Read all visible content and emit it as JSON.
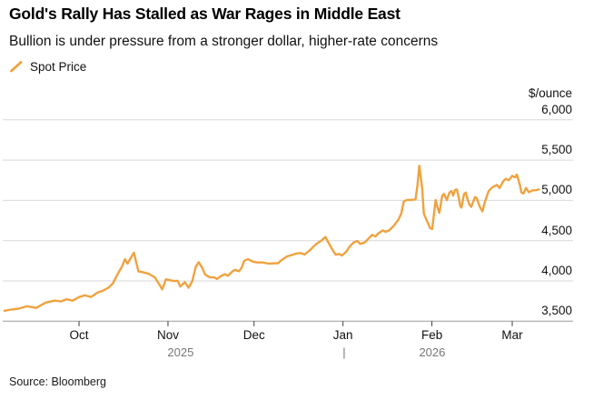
{
  "header": {
    "title": "Gold's Rally Has Stalled as War Rages in Middle East",
    "subtitle": "Bullion is under pressure from a stronger dollar, higher-rate concerns"
  },
  "legend": {
    "label": "Spot Price",
    "marker": "orange-slash"
  },
  "footer": {
    "source": "Source: Bloomberg"
  },
  "colors": {
    "line": "#F0A23F",
    "grid": "#D9D9D9",
    "axis": "#A6A6A6",
    "tick": "#3C3C3C",
    "year": "#767676",
    "text": "#000000",
    "background": "#FFFFFF"
  },
  "chart_data": {
    "type": "line",
    "title": "Gold's Rally Has Stalled as War Rages in Middle East",
    "subtitle": "Bullion is under pressure from a stronger dollar, higher-rate concerns",
    "y_unit": "$/ounce",
    "ylim": [
      3500,
      6000
    ],
    "y_ticks": [
      3500,
      4000,
      4500,
      5000,
      5500,
      6000
    ],
    "grid": true,
    "legend_position": "top-left",
    "x_epoch": "2025-09-05",
    "x_unit": "days since 2025-09-05",
    "x_ticks": [
      {
        "day": 26,
        "label": "Oct"
      },
      {
        "day": 57,
        "label": "Nov"
      },
      {
        "day": 87,
        "label": "Dec"
      },
      {
        "day": 118,
        "label": "Jan"
      },
      {
        "day": 149,
        "label": "Feb"
      },
      {
        "day": 177,
        "label": "Mar"
      }
    ],
    "year_labels": [
      {
        "day": 61.4,
        "label": "2025"
      },
      {
        "day": 118.4,
        "label": "|",
        "divider": true
      },
      {
        "day": 149.1,
        "label": "2026"
      }
    ],
    "series": [
      {
        "name": "Spot Price",
        "points": [
          [
            0,
            3630
          ],
          [
            2.5,
            3645
          ],
          [
            4.8,
            3655
          ],
          [
            7.9,
            3685
          ],
          [
            11.1,
            3665
          ],
          [
            14.3,
            3730
          ],
          [
            17.5,
            3755
          ],
          [
            19.7,
            3745
          ],
          [
            21.6,
            3772
          ],
          [
            23.8,
            3755
          ],
          [
            26.1,
            3800
          ],
          [
            28,
            3820
          ],
          [
            30.2,
            3800
          ],
          [
            32.4,
            3855
          ],
          [
            34.3,
            3878
          ],
          [
            36.2,
            3915
          ],
          [
            37.8,
            3970
          ],
          [
            39.7,
            4100
          ],
          [
            41,
            4180
          ],
          [
            42,
            4270
          ],
          [
            42.9,
            4215
          ],
          [
            44.2,
            4295
          ],
          [
            45.1,
            4350
          ],
          [
            46.7,
            4120
          ],
          [
            48.6,
            4105
          ],
          [
            50.5,
            4085
          ],
          [
            52.4,
            4045
          ],
          [
            54,
            3955
          ],
          [
            55,
            3895
          ],
          [
            56.3,
            4020
          ],
          [
            58.8,
            4000
          ],
          [
            60.4,
            4000
          ],
          [
            61.3,
            3930
          ],
          [
            62.9,
            3985
          ],
          [
            64.2,
            3915
          ],
          [
            65.5,
            4000
          ],
          [
            66.7,
            4176
          ],
          [
            67.7,
            4233
          ],
          [
            69,
            4157
          ],
          [
            69.9,
            4082
          ],
          [
            71.5,
            4044
          ],
          [
            73.1,
            4044
          ],
          [
            74.1,
            4025
          ],
          [
            75.6,
            4063
          ],
          [
            76.9,
            4082
          ],
          [
            77.9,
            4063
          ],
          [
            79.5,
            4120
          ],
          [
            80.4,
            4138
          ],
          [
            81.7,
            4120
          ],
          [
            82.6,
            4157
          ],
          [
            83.6,
            4251
          ],
          [
            84.9,
            4270
          ],
          [
            86.5,
            4240
          ],
          [
            88,
            4229
          ],
          [
            90,
            4229
          ],
          [
            92.2,
            4215
          ],
          [
            93.8,
            4218
          ],
          [
            95.4,
            4220
          ],
          [
            96.3,
            4251
          ],
          [
            98.5,
            4305
          ],
          [
            100.1,
            4320
          ],
          [
            101.7,
            4340
          ],
          [
            103.3,
            4346
          ],
          [
            104.6,
            4327
          ],
          [
            106.5,
            4383
          ],
          [
            108.7,
            4459
          ],
          [
            110.3,
            4496
          ],
          [
            111.9,
            4545
          ],
          [
            113.5,
            4440
          ],
          [
            114.4,
            4383
          ],
          [
            115.4,
            4327
          ],
          [
            116.7,
            4334
          ],
          [
            117.6,
            4315
          ],
          [
            119.2,
            4365
          ],
          [
            120.2,
            4421
          ],
          [
            121.7,
            4477
          ],
          [
            123,
            4496
          ],
          [
            124,
            4459
          ],
          [
            125.6,
            4477
          ],
          [
            127.1,
            4533
          ],
          [
            128.1,
            4571
          ],
          [
            129.4,
            4552
          ],
          [
            130.3,
            4590
          ],
          [
            131.9,
            4628
          ],
          [
            132.9,
            4609
          ],
          [
            134.1,
            4628
          ],
          [
            135.7,
            4684
          ],
          [
            137.3,
            4760
          ],
          [
            138.3,
            4834
          ],
          [
            139.2,
            4985
          ],
          [
            140.2,
            5005
          ],
          [
            141.4,
            5005
          ],
          [
            142.4,
            5008
          ],
          [
            143.3,
            5015
          ],
          [
            144,
            5200
          ],
          [
            144.6,
            5430
          ],
          [
            145.6,
            5150
          ],
          [
            146.2,
            4835
          ],
          [
            147.2,
            4750
          ],
          [
            148.4,
            4655
          ],
          [
            149.1,
            4645
          ],
          [
            150.3,
            5003
          ],
          [
            151,
            4905
          ],
          [
            151.6,
            4845
          ],
          [
            152.6,
            5060
          ],
          [
            153.2,
            5080
          ],
          [
            154.2,
            5003
          ],
          [
            155.1,
            5097
          ],
          [
            155.8,
            5116
          ],
          [
            156.4,
            5060
          ],
          [
            157,
            5128
          ],
          [
            157.7,
            5135
          ],
          [
            158.3,
            5041
          ],
          [
            158.9,
            4928
          ],
          [
            159.3,
            4910
          ],
          [
            160.2,
            5079
          ],
          [
            160.8,
            5097
          ],
          [
            161.5,
            5003
          ],
          [
            162.1,
            4946
          ],
          [
            162.7,
            4919
          ],
          [
            164,
            5041
          ],
          [
            164.6,
            5030
          ],
          [
            165.6,
            4928
          ],
          [
            166.6,
            4862
          ],
          [
            167.5,
            4984
          ],
          [
            168.8,
            5116
          ],
          [
            170,
            5160
          ],
          [
            170.7,
            5173
          ],
          [
            171.6,
            5192
          ],
          [
            172.6,
            5154
          ],
          [
            173.9,
            5240
          ],
          [
            174.8,
            5267
          ],
          [
            175.8,
            5250
          ],
          [
            177,
            5305
          ],
          [
            178,
            5285
          ],
          [
            178.6,
            5320
          ],
          [
            179.6,
            5200
          ],
          [
            180.2,
            5097
          ],
          [
            180.9,
            5085
          ],
          [
            181.8,
            5154
          ],
          [
            182.8,
            5100
          ],
          [
            184,
            5124
          ],
          [
            185.3,
            5126
          ],
          [
            186.3,
            5135
          ]
        ]
      }
    ]
  }
}
